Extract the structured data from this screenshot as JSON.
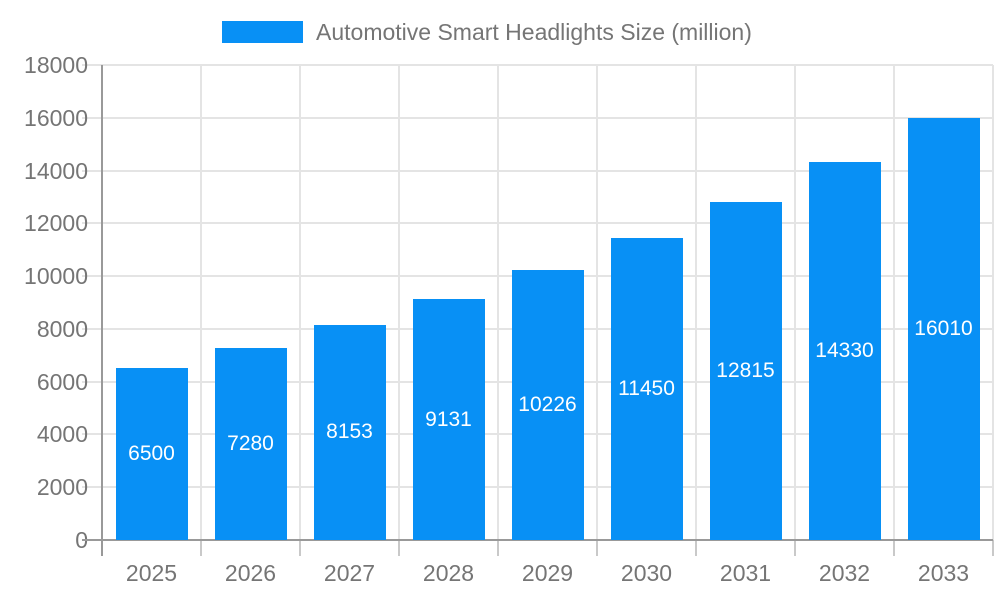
{
  "legend": {
    "label": "Automotive Smart Headlights Size (million)"
  },
  "chart_data": {
    "type": "bar",
    "title": "Automotive Smart Headlights Size (million)",
    "series_name": "Automotive Smart Headlights Size (million)",
    "categories": [
      "2025",
      "2026",
      "2027",
      "2028",
      "2029",
      "2030",
      "2031",
      "2032",
      "2033"
    ],
    "values": [
      6500,
      7280,
      8153,
      9131,
      10226,
      11450,
      12815,
      14330,
      16010
    ],
    "xlabel": "",
    "ylabel": "",
    "ylim": [
      0,
      18000
    ],
    "ytick_step": 2000,
    "ytick_labels": [
      "0",
      "2000",
      "4000",
      "6000",
      "8000",
      "10000",
      "12000",
      "14000",
      "16000",
      "18000"
    ],
    "grid": true,
    "legend_position": "top",
    "value_labels": "inside-center",
    "colors": {
      "bar": "#0890F5",
      "grid": "#e4e4e4",
      "axis": "#999999",
      "x_tick": "#c9c9c9",
      "axis_text": "#757575",
      "legend_text": "#757575",
      "value_text": "#ffffff",
      "background": "#ffffff"
    }
  }
}
